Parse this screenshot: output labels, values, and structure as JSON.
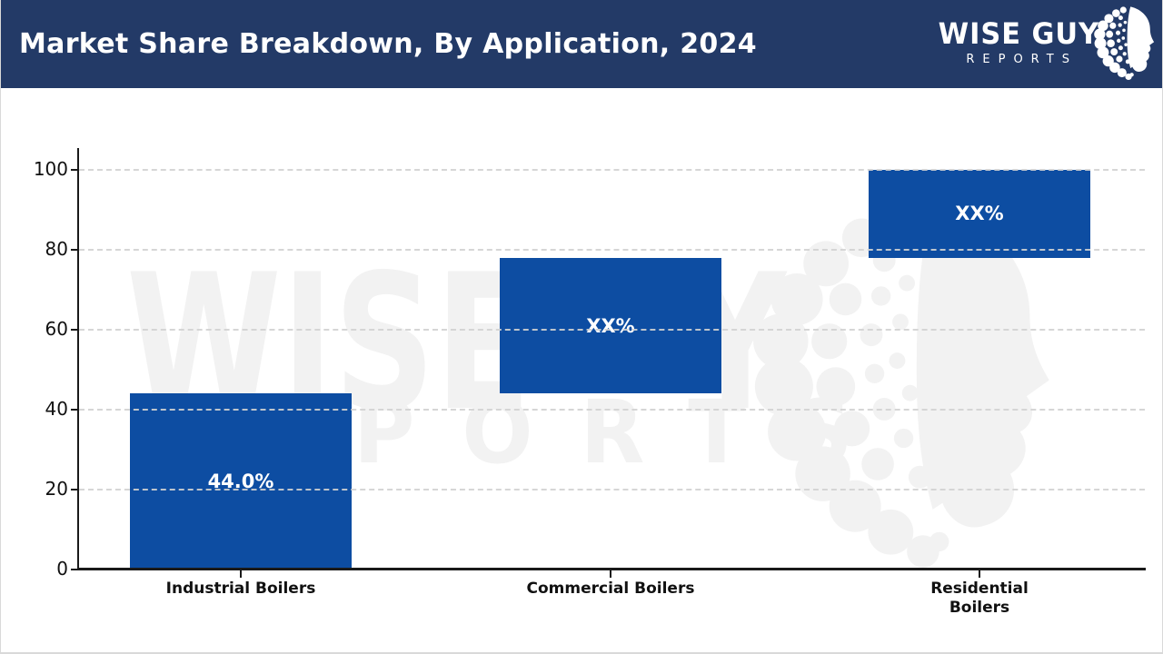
{
  "header": {
    "title": "Market Share Breakdown, By Application, 2024",
    "logo": {
      "wordmark": "WISE GUY",
      "subtext": "REPORTS"
    }
  },
  "colors": {
    "header_bg": "#233a67",
    "header_text": "#ffffff",
    "bar": "#0d4da2",
    "bar_label": "#ffffff",
    "grid": "#d2d2d2",
    "axis": "#1a1a1a",
    "tick_label": "#111111",
    "watermark": "#f2f2f2",
    "page_border": "#d9d9d9"
  },
  "watermark": {
    "line1": "WISE",
    "line1b": "Y",
    "line2": "PORTS"
  },
  "chart_data": {
    "type": "bar",
    "subtype": "waterfall",
    "title": "Market Share Breakdown, By Application, 2024",
    "categories": [
      "Industrial Boilers",
      "Commercial Boilers",
      "Residential Boilers"
    ],
    "xtick_labels": [
      "Industrial Boilers",
      "Commercial Boilers",
      "Residential\nBoilers"
    ],
    "segments": [
      {
        "category": "Industrial Boilers",
        "start": 0,
        "end": 44,
        "value": 44,
        "label": "44.0%"
      },
      {
        "category": "Commercial Boilers",
        "start": 44,
        "end": 78,
        "value": 34,
        "label": "XX%"
      },
      {
        "category": "Residential Boilers",
        "start": 78,
        "end": 100,
        "value": 22,
        "label": "XX%"
      }
    ],
    "bar_labels": [
      "44.0%",
      "XX%",
      "XX%"
    ],
    "xlabel": "",
    "ylabel": "",
    "yticks": [
      0,
      20,
      40,
      60,
      80,
      100
    ],
    "ylim": [
      0,
      105
    ],
    "grid": "horizontal dashed",
    "legend": null,
    "units": "percent market share"
  }
}
